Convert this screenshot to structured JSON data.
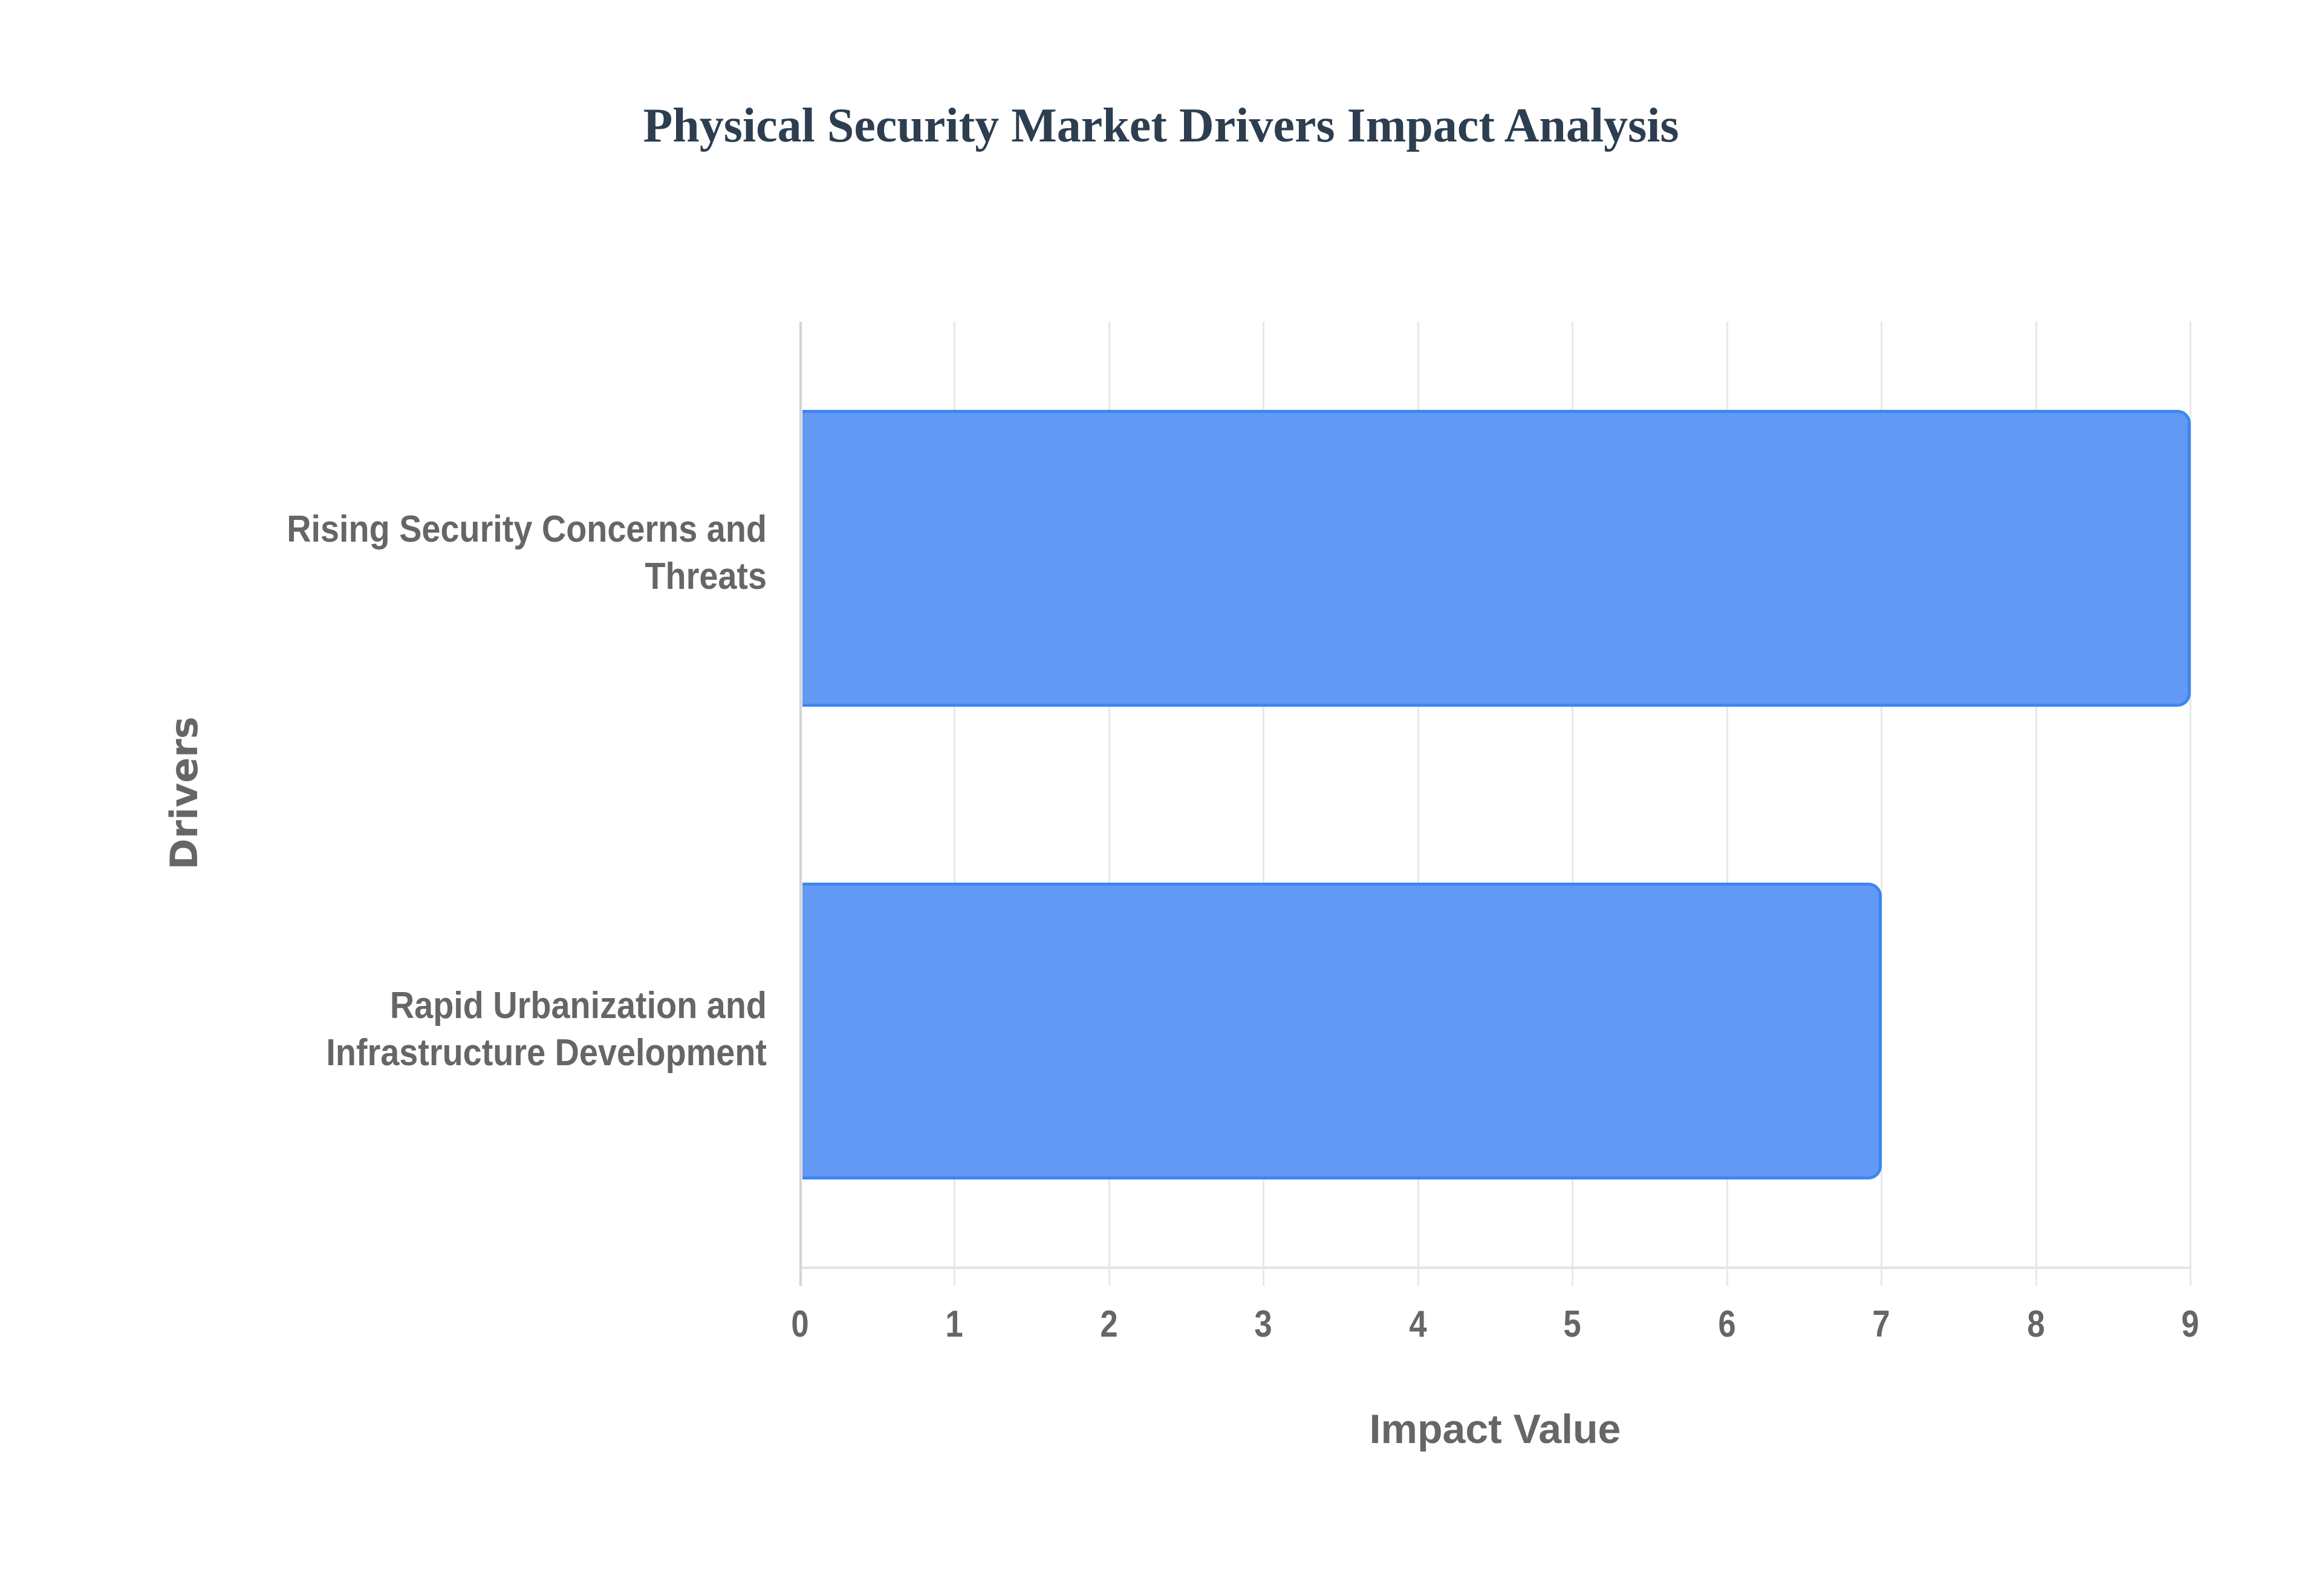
{
  "title": "Physical Security Market Drivers Impact Analysis",
  "colors": {
    "bar_fill": "#6199f5",
    "bar_border": "#3f86ef",
    "title": "#2c3e50",
    "axis_text": "#666666",
    "grid": "#e8e8e8"
  },
  "axes": {
    "x_title": "Impact Value",
    "y_title": "Drivers",
    "x_ticks": [
      "0",
      "1",
      "2",
      "3",
      "4",
      "5",
      "6",
      "7",
      "8",
      "9"
    ]
  },
  "categories": [
    {
      "line1": "Rising Security Concerns and",
      "line2": "Threats",
      "value": 9
    },
    {
      "line1": "Rapid Urbanization and",
      "line2": "Infrastructure Development",
      "value": 7
    }
  ],
  "chart_data": {
    "type": "bar",
    "orientation": "horizontal",
    "title": "Physical Security Market Drivers Impact Analysis",
    "categories": [
      "Rising Security Concerns and Threats",
      "Rapid Urbanization and Infrastructure Development"
    ],
    "values": [
      9,
      7
    ],
    "xlabel": "Impact Value",
    "ylabel": "Drivers",
    "xlim": [
      0,
      9
    ],
    "x_ticks": [
      0,
      1,
      2,
      3,
      4,
      5,
      6,
      7,
      8,
      9
    ],
    "grid": {
      "vertical": true,
      "horizontal": false
    },
    "legend": null
  }
}
